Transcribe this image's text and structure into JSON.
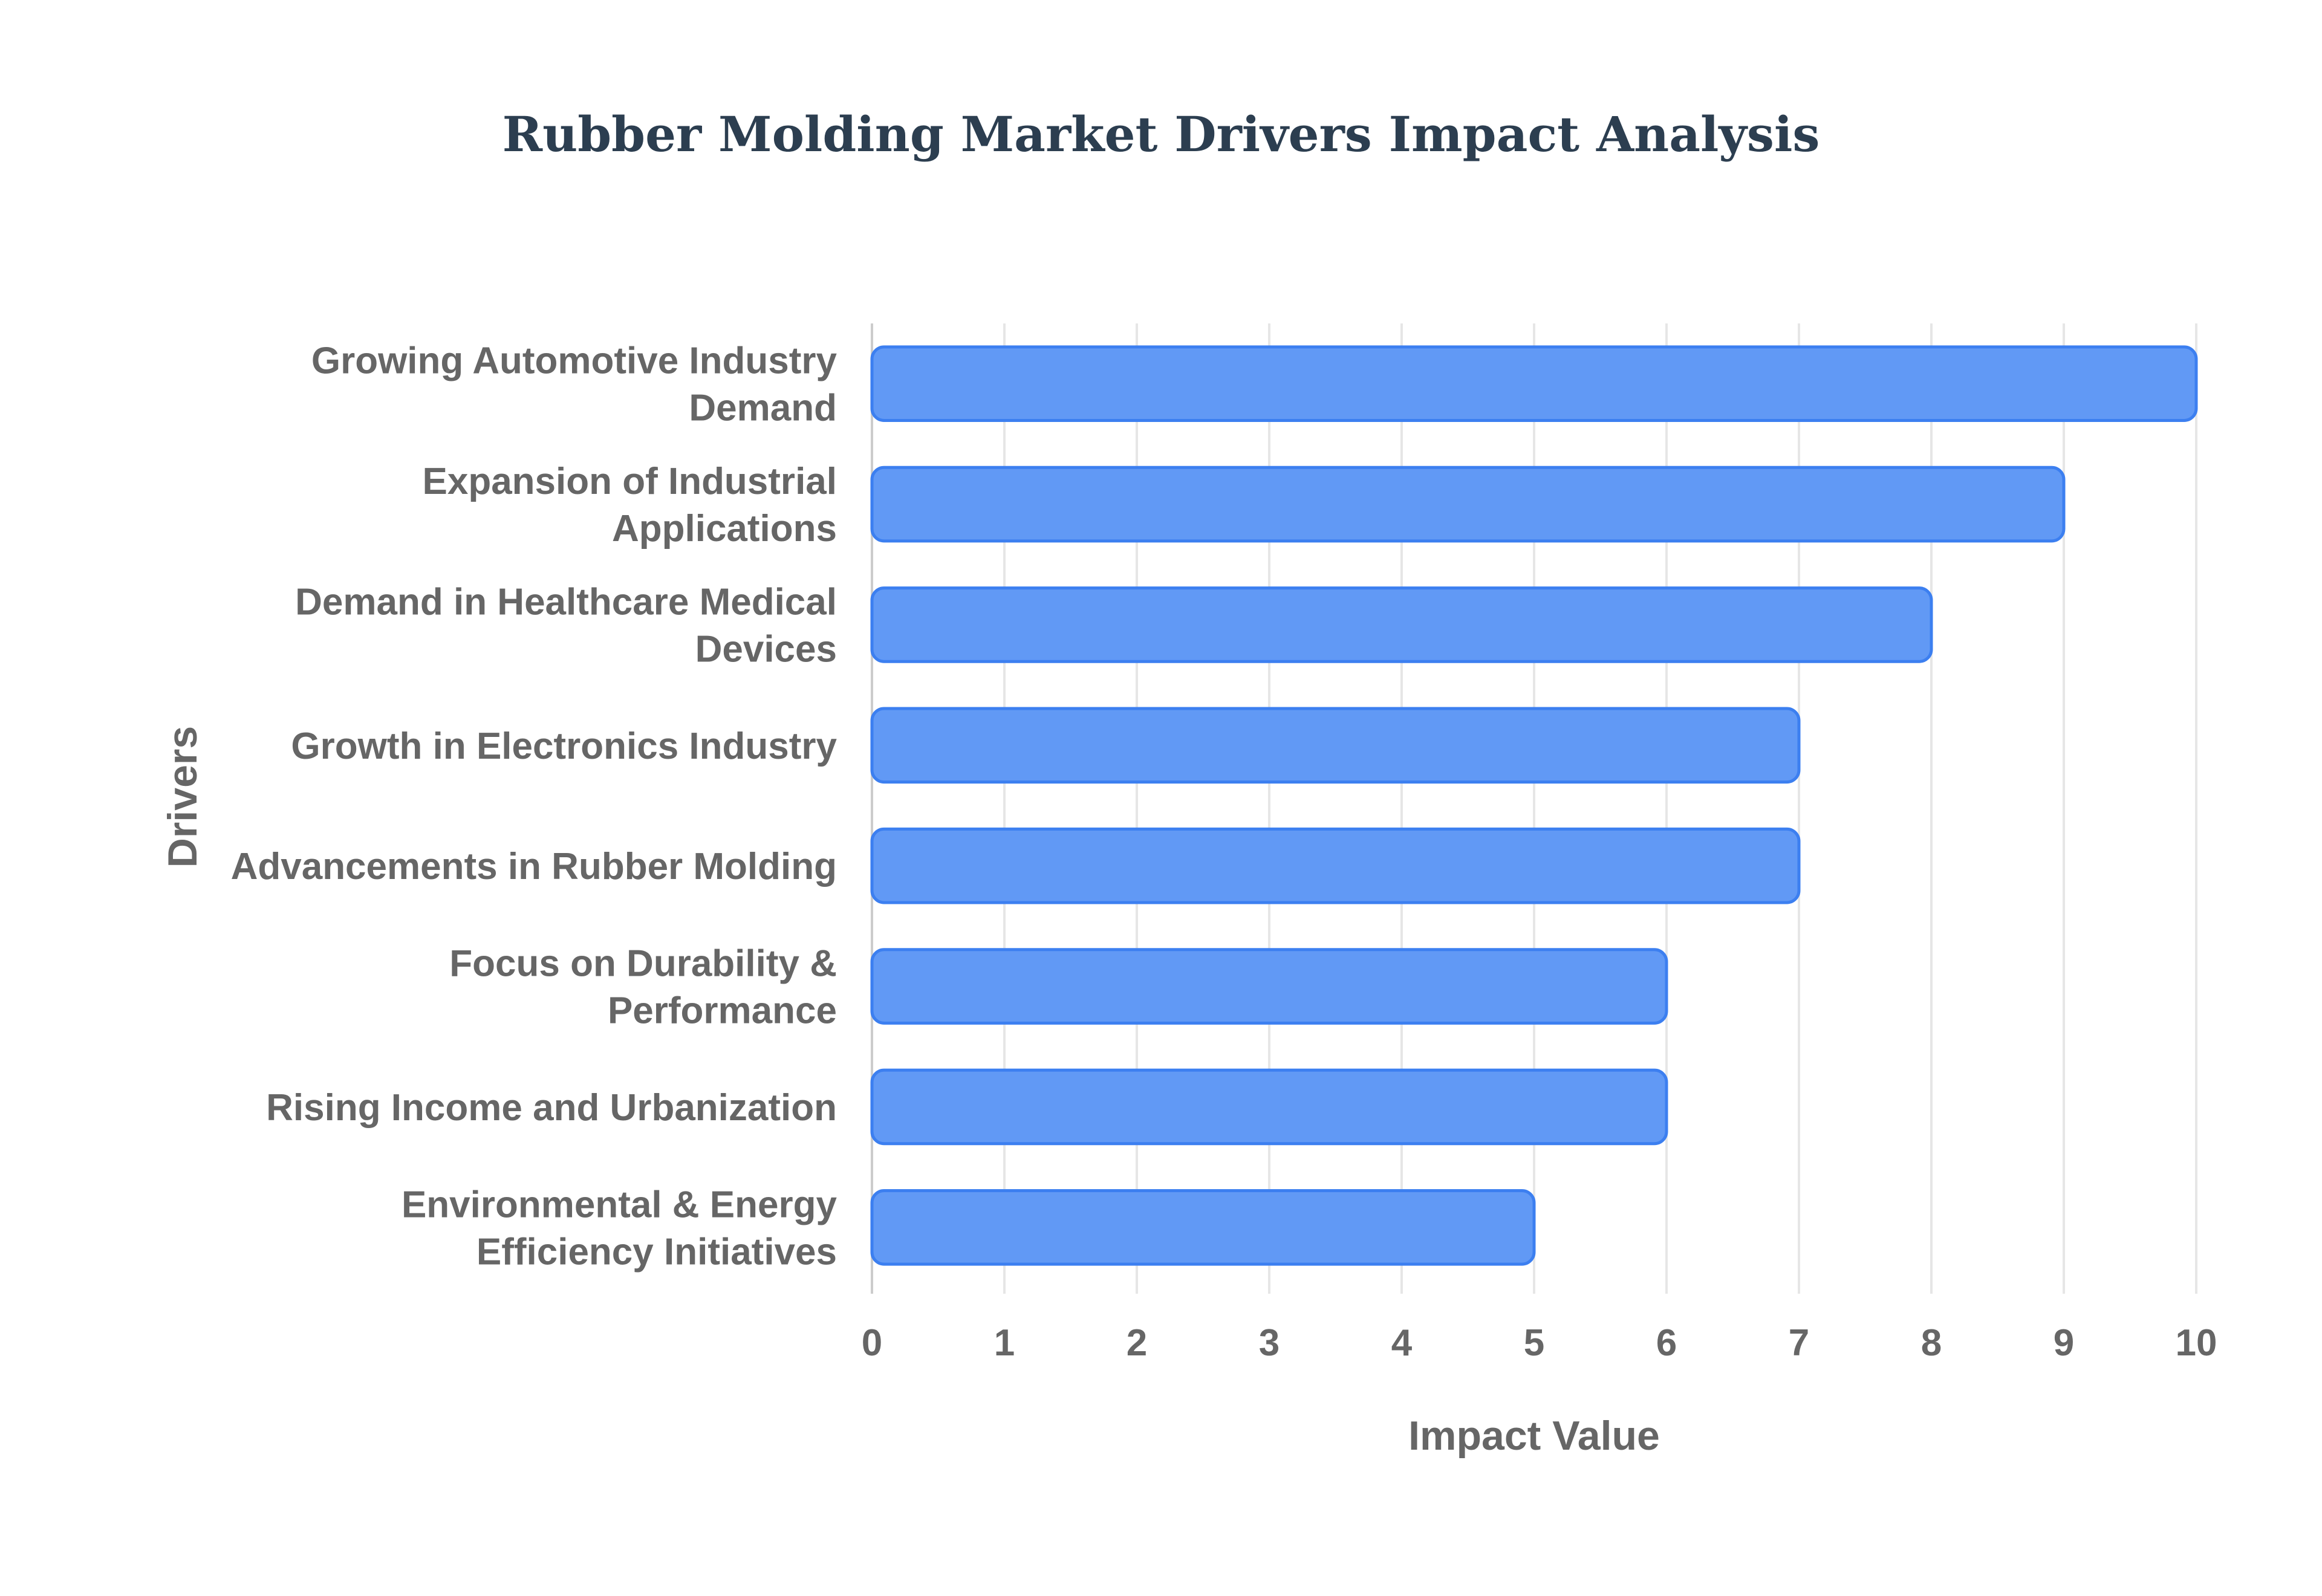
{
  "chart_data": {
    "type": "bar",
    "orientation": "horizontal",
    "title": "Rubber Molding Market Drivers Impact Analysis",
    "xlabel": "Impact Value",
    "ylabel": "Drivers",
    "xlim": [
      0,
      10
    ],
    "x_ticks": [
      "0",
      "1",
      "2",
      "3",
      "4",
      "5",
      "6",
      "7",
      "8",
      "9",
      "10"
    ],
    "grid": true,
    "legend": "none",
    "categories": [
      [
        "Growing Automotive Industry",
        "Demand"
      ],
      [
        "Expansion of Industrial",
        "Applications"
      ],
      [
        "Demand in Healthcare Medical",
        "Devices"
      ],
      [
        "Growth in Electronics Industry"
      ],
      [
        "Advancements in Rubber Molding"
      ],
      [
        "Focus on Durability &",
        "Performance"
      ],
      [
        "Rising Income and Urbanization"
      ],
      [
        "Environmental & Energy",
        "Efficiency Initiatives"
      ]
    ],
    "values": [
      10,
      9,
      8,
      7,
      7,
      6,
      6,
      5
    ],
    "colors": {
      "bar_fill": "#6199f5",
      "bar_stroke": "#3c7ff0",
      "title": "#2c3e50",
      "text": "#666666"
    }
  }
}
